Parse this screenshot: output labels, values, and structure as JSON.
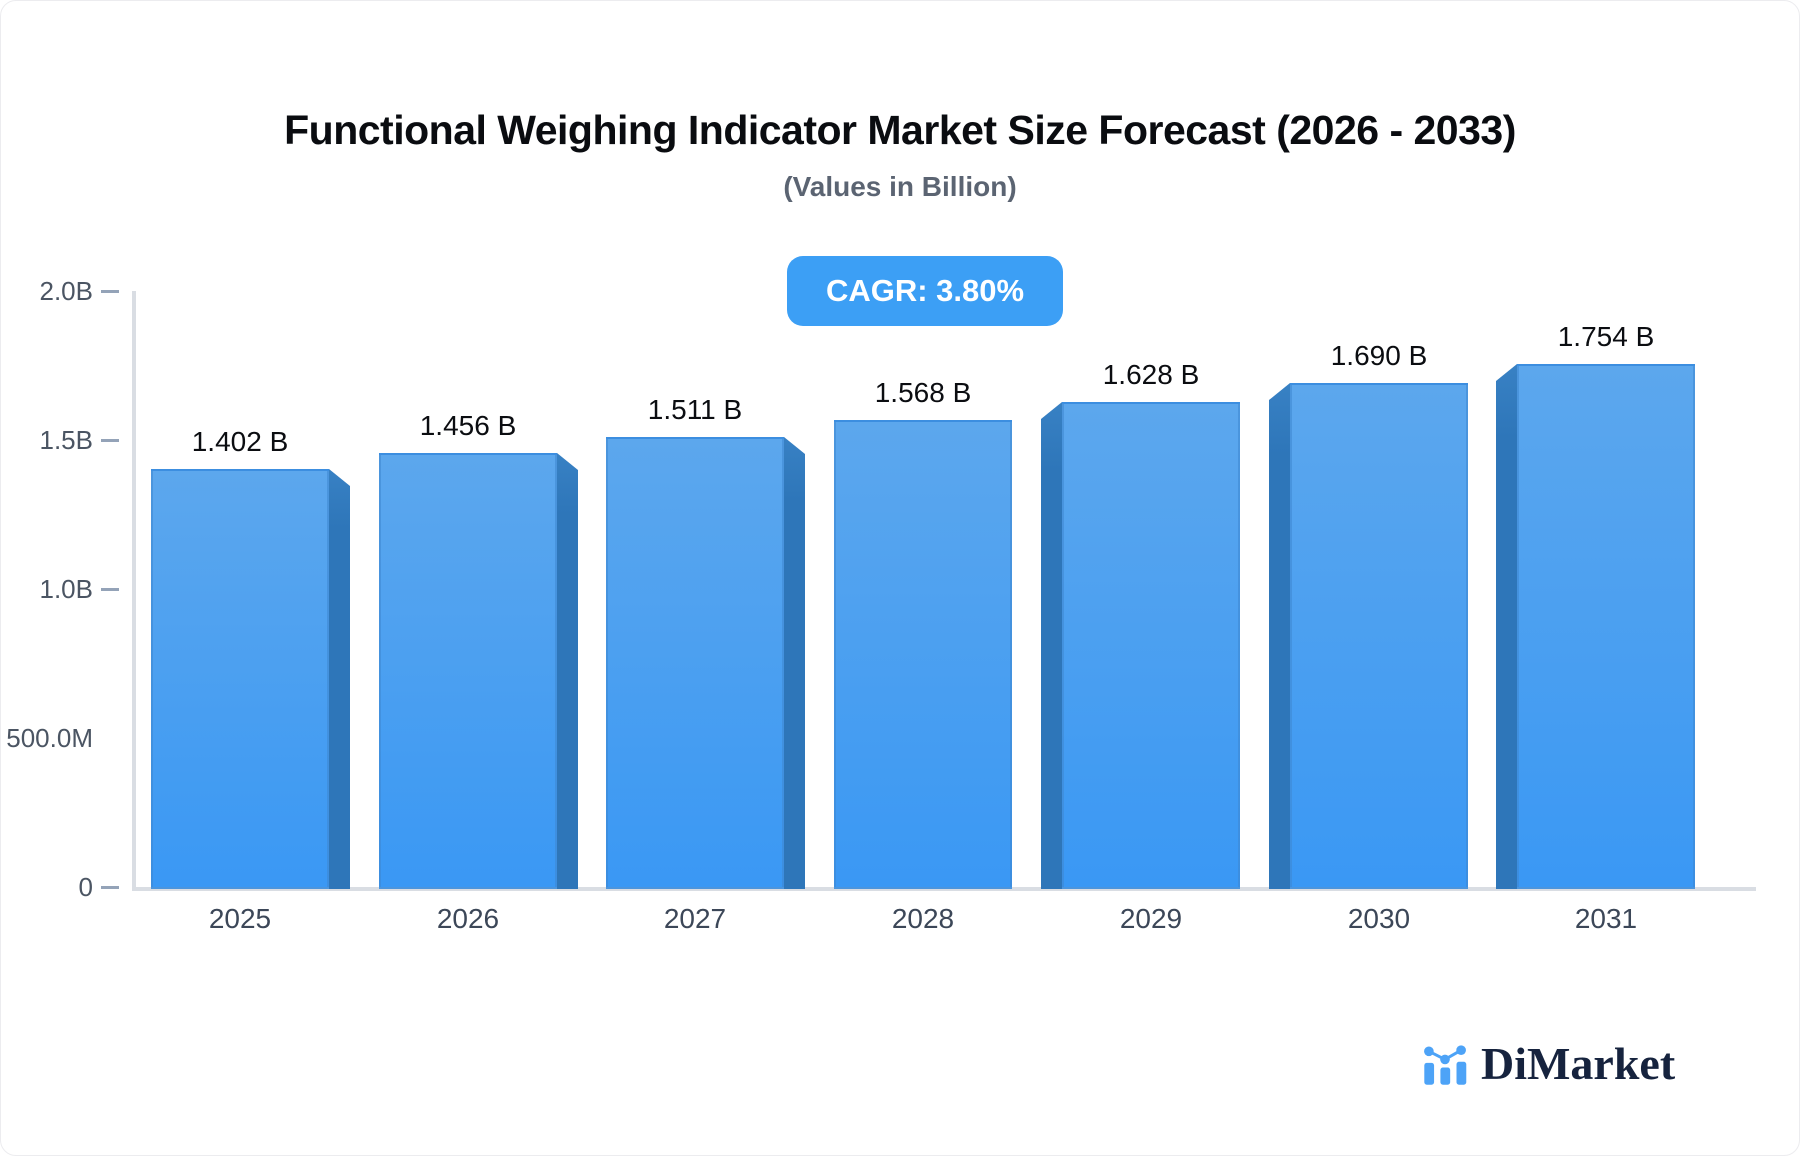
{
  "chart": {
    "title": "Functional Weighing Indicator Market Size Forecast (2026 - 2033)",
    "subtitle": "(Values in Billion)",
    "cagr_badge": "CAGR: 3.80%"
  },
  "branding": {
    "name": "DiMarket"
  },
  "colors": {
    "badge_bg": "#3c9ff5",
    "bar_face_top": "#5ca7ed",
    "bar_face_bottom": "#3a98f4",
    "bar_side": "#2e76b9",
    "bar_border": "#3e86cf",
    "axis_line": "#d9dde3",
    "tick_dash": "#94a3b8",
    "y_label": "#4b5563",
    "x_label": "#3c4758",
    "value_label": "#0b0d11",
    "logo_blue": "#4da3f7",
    "logo_text": "#16233e"
  },
  "chart_data": {
    "type": "bar",
    "title": "Functional Weighing Indicator Market Size Forecast (2026 - 2033)",
    "subtitle": "(Values in Billion)",
    "categories": [
      "2025",
      "2026",
      "2027",
      "2028",
      "2029",
      "2030",
      "2031"
    ],
    "values": [
      1.402,
      1.456,
      1.511,
      1.568,
      1.628,
      1.69,
      1.754
    ],
    "value_labels": [
      "1.402 B",
      "1.456 B",
      "1.511 B",
      "1.568 B",
      "1.628 B",
      "1.690 B",
      "1.754 B"
    ],
    "unit": "Billion",
    "cagr_percent": 3.8,
    "xlabel": "",
    "ylabel": "",
    "ylim": [
      0,
      2.0
    ],
    "yticks": [
      {
        "label": "0",
        "value": 0.0,
        "dash": true
      },
      {
        "label": "500.0M",
        "value": 0.5,
        "dash": false
      },
      {
        "label": "1.0B",
        "value": 1.0,
        "dash": true
      },
      {
        "label": "1.5B",
        "value": 1.5,
        "dash": true
      },
      {
        "label": "2.0B",
        "value": 2.0,
        "dash": true
      }
    ],
    "grid": false,
    "legend": null,
    "style": "3d-perspective-bars"
  }
}
